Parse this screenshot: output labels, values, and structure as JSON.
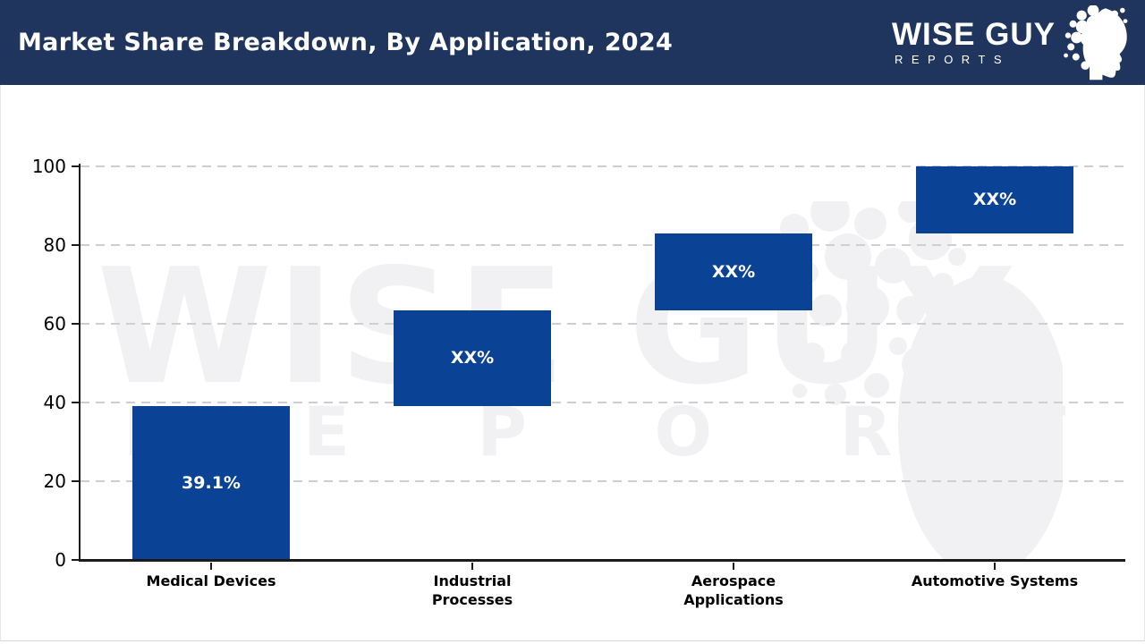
{
  "header": {
    "title": "Market Share Breakdown, By Application, 2024",
    "logo": {
      "wordmark": "WISE GUY",
      "subtitle": "REPORTS"
    }
  },
  "watermark": {
    "line1": "WISE GUY",
    "line2": "R E P O R T S"
  },
  "colors": {
    "header_bg": "#20355e",
    "bar": "#0a4296",
    "bar_label": "#ffffff",
    "gridline": "#cfcfcf",
    "axis": "#1a1a1a",
    "watermark": "#f1f1f4"
  },
  "chart_data": {
    "type": "bar",
    "subtype": "waterfall-breakdown",
    "title": "Market Share Breakdown, By Application, 2024",
    "categories": [
      "Medical Devices",
      "Industrial Processes",
      "Aerospace Applications",
      "Automotive Systems"
    ],
    "ylim": [
      0,
      100
    ],
    "yticks": [
      0,
      20,
      40,
      60,
      80,
      100
    ],
    "grid": "horizontal-dashed",
    "legend": "none",
    "series": [
      {
        "name": "Market share (%)",
        "segments": [
          {
            "category": "Medical Devices",
            "label_lines": [
              "Medical Devices"
            ],
            "start": 0,
            "end": 39.1,
            "value_label": "39.1%"
          },
          {
            "category": "Industrial Processes",
            "label_lines": [
              "Industrial",
              "Processes"
            ],
            "start": 39.1,
            "end": 63.5,
            "value_label": "XX%"
          },
          {
            "category": "Aerospace Applications",
            "label_lines": [
              "Aerospace",
              "Applications"
            ],
            "start": 63.5,
            "end": 83.0,
            "value_label": "XX%"
          },
          {
            "category": "Automotive Systems",
            "label_lines": [
              "Automotive Systems"
            ],
            "start": 83.0,
            "end": 100.0,
            "value_label": "XX%"
          }
        ]
      }
    ]
  }
}
